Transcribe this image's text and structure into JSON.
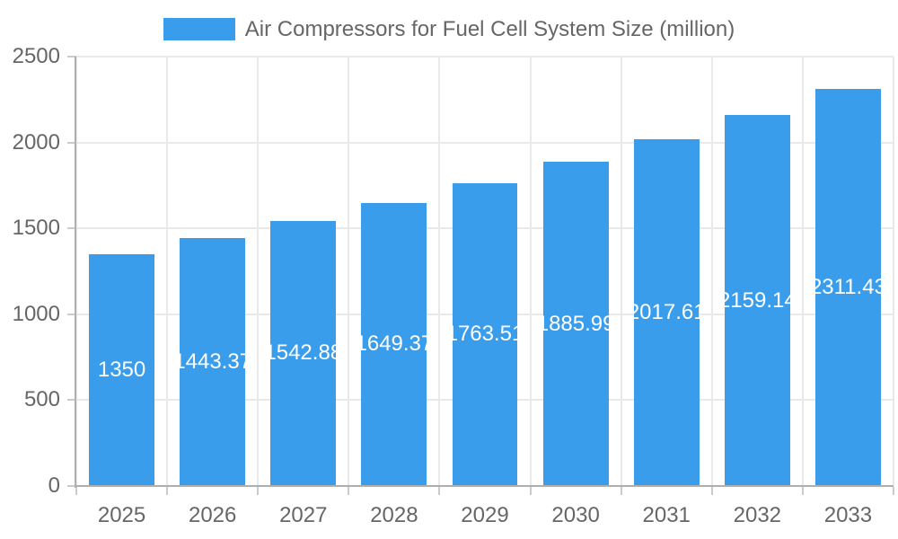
{
  "chart_data": {
    "type": "bar",
    "title": "Air Compressors for Fuel Cell System Size (million)",
    "categories": [
      "2025",
      "2026",
      "2027",
      "2028",
      "2029",
      "2030",
      "2031",
      "2032",
      "2033"
    ],
    "series": [
      {
        "name": "Air Compressors for Fuel Cell System Size (million)",
        "values": [
          1350,
          1443.37,
          1542.88,
          1649.37,
          1763.51,
          1885.99,
          2017.61,
          2159.14,
          2311.43
        ],
        "labels": [
          "1350",
          "1443.37",
          "1542.88",
          "1649.37",
          "1763.51",
          "1885.99",
          "2017.61",
          "2159.14",
          "2311.43"
        ]
      }
    ],
    "xlabel": "",
    "ylabel": "",
    "ylim": [
      0,
      2500
    ],
    "y_ticks": [
      0,
      500,
      1000,
      1500,
      2000,
      2500
    ],
    "grid": true,
    "legend_position": "top",
    "value_label_position": "inside-center",
    "colors": {
      "bar": "#3A9DEC",
      "grid_line": "#E9E9E9",
      "axis_line": "#AFAFAF",
      "tick_mark": "#CBCBCB",
      "tick_label": "#666666",
      "legend_text": "#666666",
      "bar_label": "#FFFFFF",
      "background": "#FFFFFF"
    }
  }
}
